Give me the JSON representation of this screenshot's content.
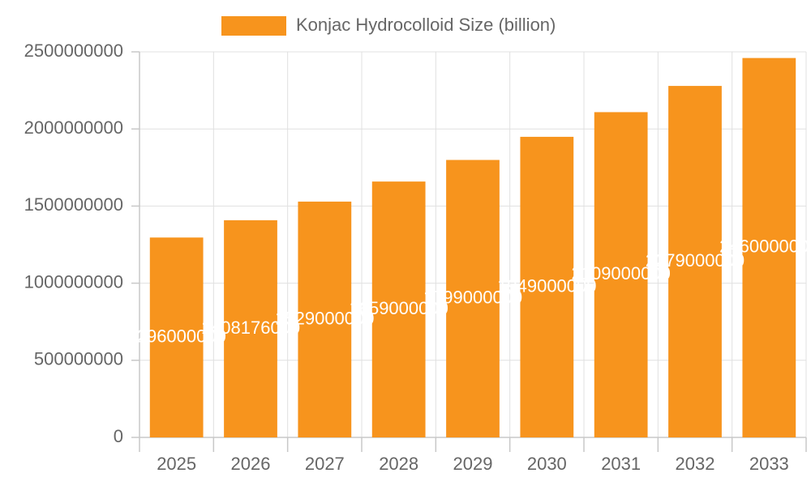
{
  "chart_data": {
    "type": "bar",
    "categories": [
      "2025",
      "2026",
      "2027",
      "2028",
      "2029",
      "2030",
      "2031",
      "2032",
      "2033"
    ],
    "series": [
      {
        "name": "Konjac Hydrocolloid Size (billion)",
        "color": "#f7941d",
        "values": [
          1296000000,
          1408176000,
          1529000000,
          1659000000,
          1799000000,
          1949000000,
          2109000000,
          2279000000,
          2460000000
        ]
      }
    ],
    "ylim": [
      0,
      2500000000
    ],
    "yticks": [
      0,
      500000000,
      1000000000,
      1500000000,
      2000000000,
      2500000000
    ],
    "grid": true,
    "legend": "top"
  }
}
